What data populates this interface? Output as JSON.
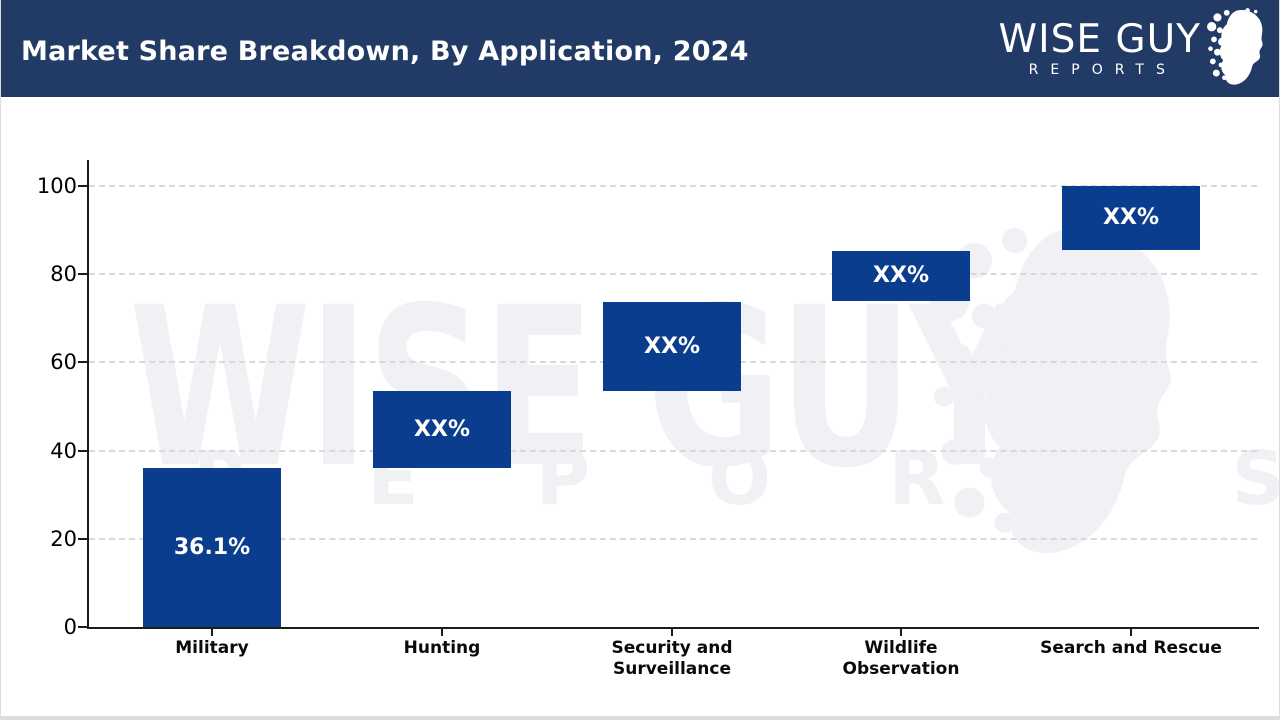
{
  "header": {
    "title": "Market Share Breakdown, By Application, 2024",
    "logo": {
      "line1": "WISE GUY",
      "line2": "REPORTS"
    }
  },
  "watermark": {
    "line1": "WISE GUY",
    "line2": "R E P O R T S"
  },
  "colors": {
    "header_bg": "#213a66",
    "bar": "#0b3d8e",
    "grid": "#d9d9d9",
    "axis": "#1c1c1c",
    "bar_label": "#ffffff",
    "watermark": "#f0f1f4"
  },
  "chart_data": {
    "type": "bar",
    "subtype": "waterfall",
    "title": "Market Share Breakdown, By Application, 2024",
    "categories": [
      "Military",
      "Hunting",
      "Security and\nSurveillance",
      "Wildlife\nObservation",
      "Search and Rescue"
    ],
    "series": [
      {
        "name": "Market share (%)",
        "segments": [
          {
            "category": "Military",
            "start": 0,
            "end": 36.1,
            "label": "36.1%"
          },
          {
            "category": "Hunting",
            "start": 36.1,
            "end": 53.5,
            "label": "XX%"
          },
          {
            "category": "Security and Surveillance",
            "start": 53.6,
            "end": 73.7,
            "label": "XX%"
          },
          {
            "category": "Wildlife Observation",
            "start": 73.9,
            "end": 85.3,
            "label": "XX%"
          },
          {
            "category": "Search and Rescue",
            "start": 85.5,
            "end": 100,
            "label": "XX%"
          }
        ]
      }
    ],
    "xlabel": "",
    "ylabel": "",
    "ylim": [
      0,
      105
    ],
    "yticks": [
      0,
      20,
      40,
      60,
      80,
      100
    ],
    "grid": "horizontal dashed",
    "legend": "none"
  }
}
